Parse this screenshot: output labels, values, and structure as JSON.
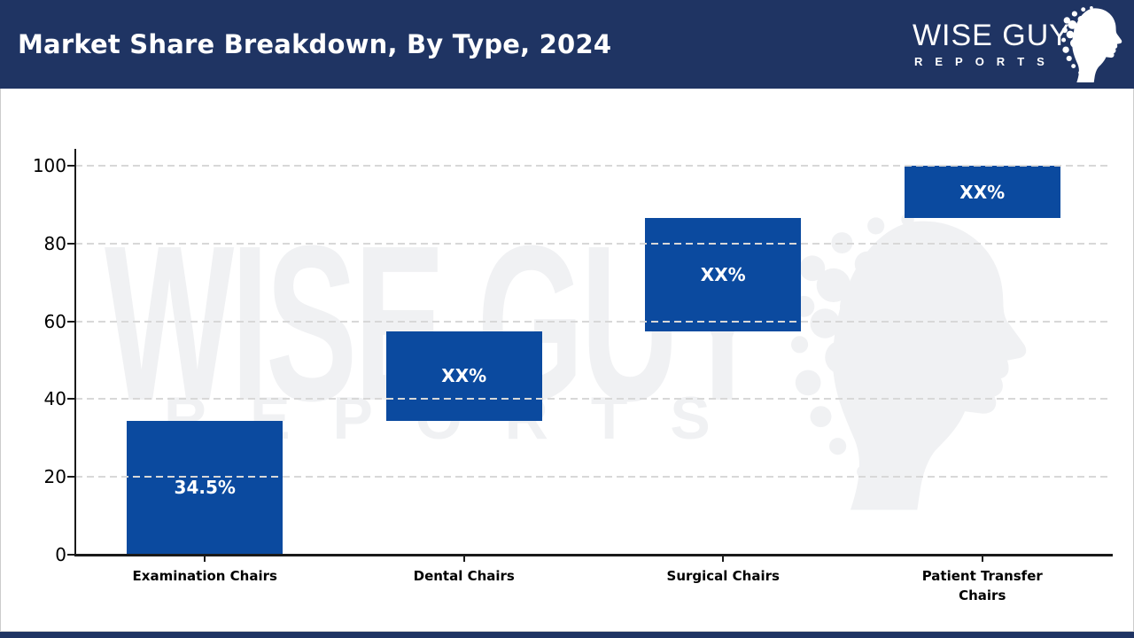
{
  "header": {
    "title": "Market Share Breakdown, By Type, 2024",
    "logo": {
      "line1": "WISE GUY",
      "line2": "REPORTS"
    }
  },
  "watermark": {
    "line1": "WISE GUY",
    "line2": "REPORTS"
  },
  "chart_data": {
    "type": "bar",
    "variant": "waterfall",
    "title": "Market Share Breakdown, By Type, 2024",
    "categories": [
      "Examination Chairs",
      "Dental Chairs",
      "Surgical Chairs",
      "Patient Transfer Chairs"
    ],
    "tick_labels": [
      "Examination Chairs",
      "Dental Chairs",
      "Surgical Chairs",
      "Patient Transfer\nChairs"
    ],
    "segments": [
      {
        "category": "Examination Chairs",
        "start": 0,
        "end": 34.5,
        "label": "34.5%"
      },
      {
        "category": "Dental Chairs",
        "start": 34.5,
        "end": 57.5,
        "label": "XX%"
      },
      {
        "category": "Surgical Chairs",
        "start": 57.5,
        "end": 86.5,
        "label": "XX%"
      },
      {
        "category": "Patient Transfer Chairs",
        "start": 86.5,
        "end": 100,
        "label": "XX%"
      }
    ],
    "xlabel": "",
    "ylabel": "",
    "ylim": [
      0,
      100
    ],
    "yticks": [
      0,
      20,
      40,
      60,
      80,
      100
    ],
    "grid": "horizontal-dashed",
    "legend": "none",
    "bar_color": "#0b4a9f"
  },
  "colors": {
    "header_bg": "#1f3463",
    "footer_bg": "#1f3463",
    "bar": "#0b4a9f",
    "gridline": "#d8d8d8",
    "axis": "#1a1a1a",
    "watermark": "#f0f1f3",
    "frame_border": "#cccccc",
    "title_text": "#ffffff",
    "bar_label_text": "#ffffff",
    "tick_text": "#000000"
  }
}
